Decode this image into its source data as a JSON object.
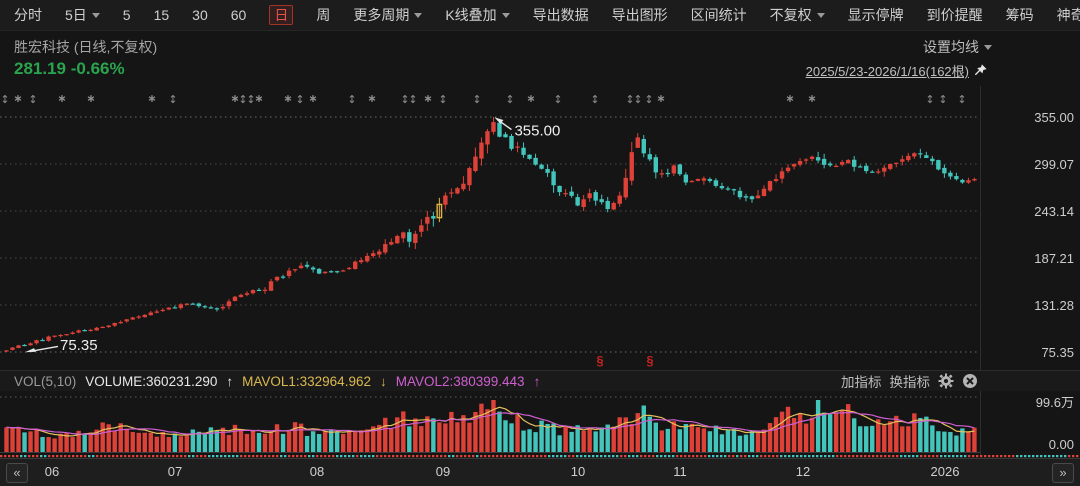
{
  "toolbar": {
    "items": [
      {
        "label": "分时"
      },
      {
        "label": "5日",
        "dropdown": true
      },
      {
        "label": "5"
      },
      {
        "label": "15"
      },
      {
        "label": "30"
      },
      {
        "label": "60"
      },
      {
        "label": "日",
        "active": true
      },
      {
        "label": "周"
      },
      {
        "label": "更多周期",
        "dropdown": true
      },
      {
        "label": "K线叠加",
        "dropdown": true
      },
      {
        "label": "导出数据"
      },
      {
        "label": "导出图形"
      },
      {
        "label": "区间统计"
      },
      {
        "label": "不复权",
        "dropdown": true
      },
      {
        "label": "显示停牌"
      },
      {
        "label": "到价提醒"
      },
      {
        "label": "筹码"
      },
      {
        "label": "神奇九",
        "circle_dropdown": true
      }
    ]
  },
  "header": {
    "title": "胜宏科技 (日线,不复权)",
    "ma_settings_label": "设置均线",
    "price": "281.19",
    "change": "-0.66%",
    "date_range": "2025/5/23-2026/1/16(162根)"
  },
  "volume_header": {
    "vol_label": "VOL(5,10)",
    "volume": "VOLUME:360231.290",
    "volume_arrow": "↑",
    "mavol1": "MAVOL1:332964.962",
    "mavol1_arrow": "↓",
    "mavol2": "MAVOL2:380399.443",
    "mavol2_arrow": "↑",
    "add_indicator": "加指标",
    "switch_indicator": "换指标"
  },
  "timeline": {
    "labels": [
      "06",
      "07",
      "08",
      "09",
      "10",
      "11",
      "12",
      "2026"
    ],
    "prev": "«",
    "next": "»"
  },
  "colors": {
    "up": "#dd4137",
    "down": "#43c5bc",
    "highlight": "#e0b23f",
    "mavol1": "#e3c05a",
    "mavol2": "#cd5ed2",
    "price_green": "#2aa34e",
    "accent_red": "#e23b3b",
    "marker_gray": "#8f8f8f"
  },
  "chart_data": {
    "type": "candlestick",
    "symbol": "胜宏科技",
    "period": "日线,不复权",
    "bars": 162,
    "date_range": "2025/5/23-2026/1/16",
    "last_close": 281.19,
    "change_pct": "-0.66%",
    "high": 355.0,
    "low": 75.35,
    "high_annotation": "355.00",
    "low_annotation": "75.35",
    "y_axis_labels": [
      "355.00",
      "299.07",
      "243.14",
      "187.21",
      "131.28",
      "75.35"
    ],
    "volume_axis_labels": [
      "99.6万",
      "0.00"
    ],
    "x_axis_labels": [
      "06",
      "07",
      "08",
      "09",
      "10",
      "11",
      "12",
      "2026"
    ],
    "vol_indicator": "VOL(5,10)",
    "volume_value": 360231.29,
    "mavol1_value": 332964.962,
    "mavol2_value": 380399.443,
    "highlight_bar": 72,
    "trend_anchors": [
      [
        0,
        78
      ],
      [
        8,
        95
      ],
      [
        16,
        105
      ],
      [
        24,
        122
      ],
      [
        30,
        133
      ],
      [
        35,
        127
      ],
      [
        38,
        140
      ],
      [
        43,
        152
      ],
      [
        47,
        172
      ],
      [
        49,
        180
      ],
      [
        52,
        169
      ],
      [
        56,
        172
      ],
      [
        59,
        185
      ],
      [
        63,
        200
      ],
      [
        66,
        217
      ],
      [
        67,
        208
      ],
      [
        70,
        230
      ],
      [
        72,
        250
      ],
      [
        74,
        265
      ],
      [
        76,
        282
      ],
      [
        78,
        308
      ],
      [
        81,
        345
      ],
      [
        82,
        336
      ],
      [
        84,
        321
      ],
      [
        86,
        310
      ],
      [
        88,
        299
      ],
      [
        90,
        289
      ],
      [
        92,
        268
      ],
      [
        95,
        252
      ],
      [
        97,
        263
      ],
      [
        100,
        248
      ],
      [
        102,
        258
      ],
      [
        103,
        288
      ],
      [
        105,
        341
      ],
      [
        106,
        321
      ],
      [
        107,
        301
      ],
      [
        109,
        286
      ],
      [
        111,
        296
      ],
      [
        113,
        279
      ],
      [
        116,
        283
      ],
      [
        118,
        273
      ],
      [
        121,
        265
      ],
      [
        123,
        256
      ],
      [
        125,
        263
      ],
      [
        127,
        278
      ],
      [
        130,
        296
      ],
      [
        132,
        301
      ],
      [
        135,
        308
      ],
      [
        137,
        295
      ],
      [
        140,
        303
      ],
      [
        142,
        295
      ],
      [
        145,
        288
      ],
      [
        147,
        298
      ],
      [
        150,
        308
      ],
      [
        152,
        312
      ],
      [
        155,
        295
      ],
      [
        157,
        286
      ],
      [
        159,
        279
      ],
      [
        161,
        281.19
      ]
    ],
    "volume_anchors": [
      [
        0,
        0.42
      ],
      [
        8,
        0.34
      ],
      [
        16,
        0.48
      ],
      [
        24,
        0.4
      ],
      [
        30,
        0.36
      ],
      [
        35,
        0.46
      ],
      [
        40,
        0.38
      ],
      [
        47,
        0.5
      ],
      [
        52,
        0.36
      ],
      [
        56,
        0.33
      ],
      [
        60,
        0.4
      ],
      [
        63,
        0.52
      ],
      [
        66,
        0.72
      ],
      [
        68,
        0.58
      ],
      [
        70,
        0.68
      ],
      [
        72,
        0.78
      ],
      [
        74,
        0.62
      ],
      [
        76,
        0.68
      ],
      [
        79,
        0.82
      ],
      [
        81,
        1.0
      ],
      [
        83,
        0.68
      ],
      [
        86,
        0.52
      ],
      [
        90,
        0.48
      ],
      [
        93,
        0.4
      ],
      [
        95,
        0.48
      ],
      [
        97,
        0.36
      ],
      [
        100,
        0.42
      ],
      [
        103,
        0.58
      ],
      [
        105,
        0.82
      ],
      [
        107,
        0.62
      ],
      [
        109,
        0.48
      ],
      [
        112,
        0.52
      ],
      [
        115,
        0.44
      ],
      [
        118,
        0.4
      ],
      [
        121,
        0.38
      ],
      [
        123,
        0.44
      ],
      [
        126,
        0.48
      ],
      [
        128,
        0.62
      ],
      [
        130,
        0.76
      ],
      [
        132,
        0.66
      ],
      [
        134,
        0.8
      ],
      [
        136,
        0.9
      ],
      [
        138,
        0.72
      ],
      [
        140,
        0.78
      ],
      [
        142,
        0.62
      ],
      [
        145,
        0.52
      ],
      [
        147,
        0.58
      ],
      [
        150,
        0.62
      ],
      [
        152,
        0.58
      ],
      [
        155,
        0.48
      ],
      [
        157,
        0.44
      ],
      [
        159,
        0.38
      ],
      [
        161,
        0.4
      ]
    ],
    "event_markers": [
      [
        5,
        "u"
      ],
      [
        18,
        "s"
      ],
      [
        33,
        "u"
      ],
      [
        62,
        "s"
      ],
      [
        91,
        "s"
      ],
      [
        152,
        "s"
      ],
      [
        173,
        "u"
      ],
      [
        235,
        "s"
      ],
      [
        243,
        "u"
      ],
      [
        251,
        "u"
      ],
      [
        259,
        "s"
      ],
      [
        288,
        "s"
      ],
      [
        300,
        "u"
      ],
      [
        313,
        "s"
      ],
      [
        352,
        "u"
      ],
      [
        372,
        "s"
      ],
      [
        405,
        "u"
      ],
      [
        413,
        "u"
      ],
      [
        428,
        "s"
      ],
      [
        443,
        "u"
      ],
      [
        477,
        "u"
      ],
      [
        510,
        "u"
      ],
      [
        531,
        "s"
      ],
      [
        558,
        "u"
      ],
      [
        595,
        "u"
      ],
      [
        630,
        "u"
      ],
      [
        638,
        "u"
      ],
      [
        649,
        "u"
      ],
      [
        661,
        "s"
      ],
      [
        790,
        "s"
      ],
      [
        812,
        "s"
      ],
      [
        930,
        "u"
      ],
      [
        943,
        "u"
      ],
      [
        962,
        "u"
      ]
    ],
    "dividend_markers": [
      600,
      650
    ],
    "dividend_symbol": "§"
  }
}
